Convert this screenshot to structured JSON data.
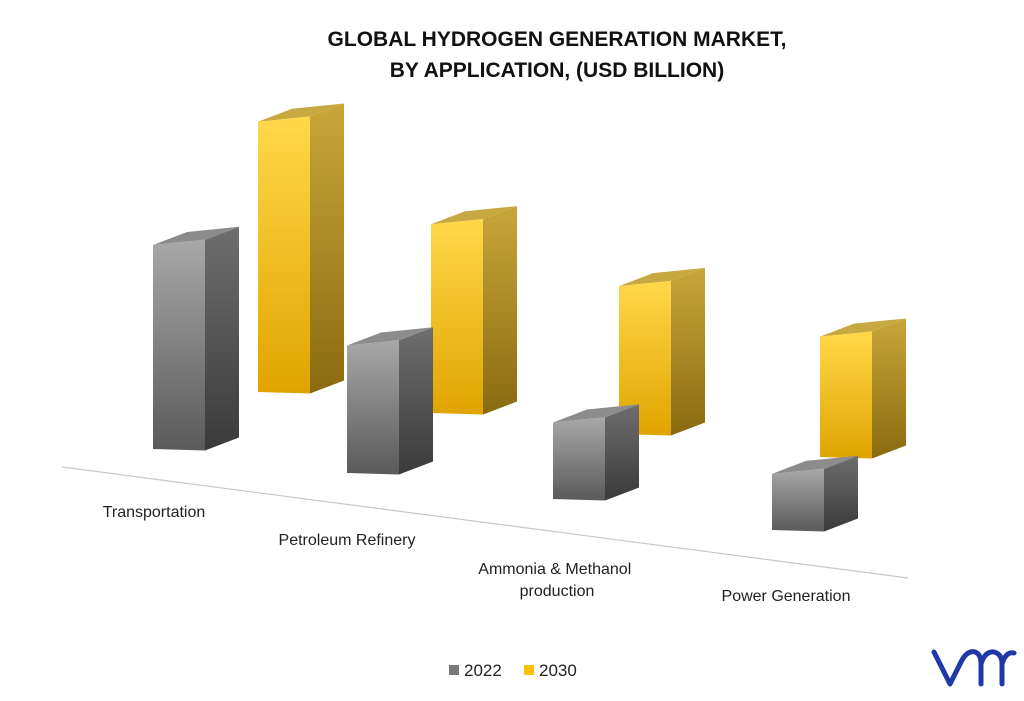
{
  "chart_data": {
    "type": "bar",
    "title": "GLOBAL HYDROGEN GENERATION MARKET,",
    "subtitle": "BY APPLICATION, (USD BILLION)",
    "categories": [
      "Transportation",
      "Petroleum Refinery",
      "Ammonia & Methanol production",
      "Power Generation"
    ],
    "category_lines": [
      [
        "Transportation"
      ],
      [
        "Petroleum Refinery"
      ],
      [
        "Ammonia & Methanol",
        "production"
      ],
      [
        "Power Generation"
      ]
    ],
    "series": [
      {
        "name": "2022",
        "values": [
          200,
          125,
          75,
          55
        ],
        "color": "#7a7a7a"
      },
      {
        "name": "2030",
        "values": [
          265,
          185,
          145,
          118
        ],
        "color": "#ffc000"
      }
    ],
    "legend": "bottom-center",
    "grid": false,
    "three_d": true,
    "axis_values_shown": false
  },
  "logo": {
    "text": "vmr",
    "color": "#1f3aa8"
  }
}
